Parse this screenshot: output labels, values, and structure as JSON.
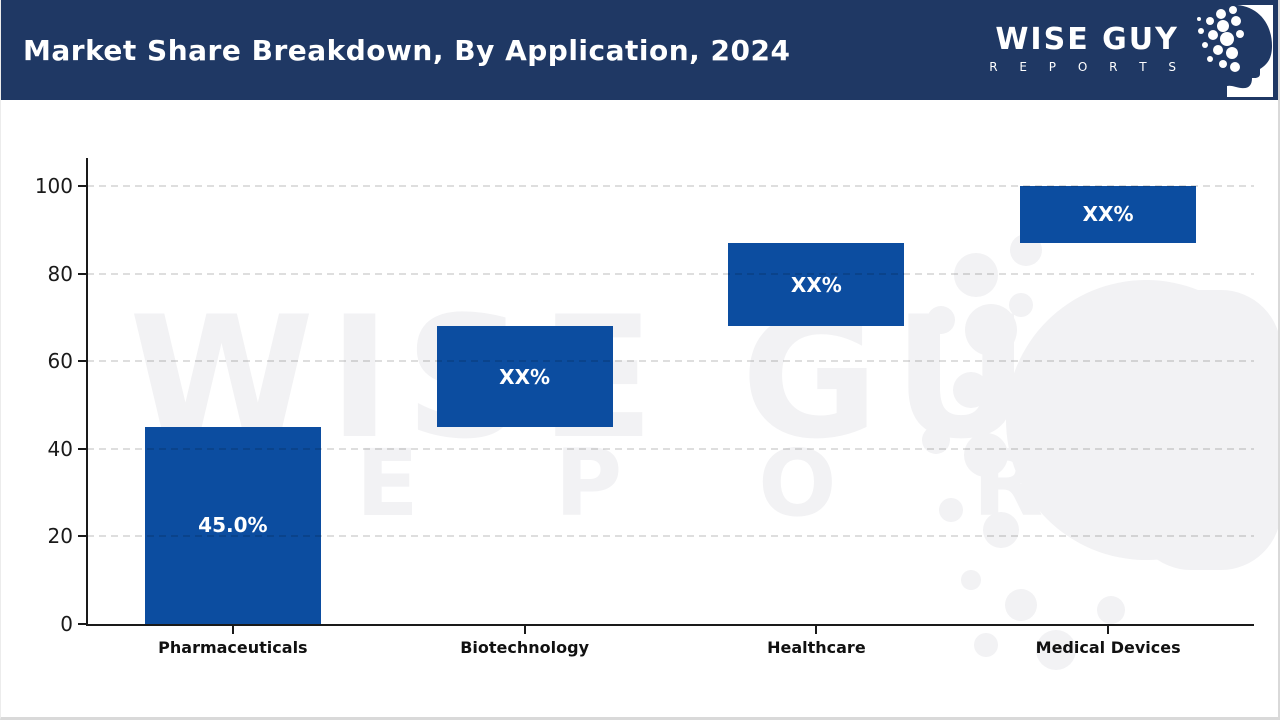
{
  "header": {
    "title": "Market Share Breakdown, By Application, 2024",
    "bg_color": "#1f3864",
    "logo": {
      "line1": "WISE GUY",
      "line2": "R E P O R T S",
      "face_icon": "dotted-face-profile"
    }
  },
  "watermark": {
    "line1": "WISE GU·Y",
    "line2": "R E P O R T S",
    "face_icon": "dotted-face-profile"
  },
  "chart_data": {
    "type": "bar",
    "subtype": "waterfall",
    "title": "Market Share Breakdown, By Application, 2024",
    "xlabel": "",
    "ylabel": "",
    "ylim": [
      0,
      100
    ],
    "yticks": [
      0,
      20,
      40,
      60,
      80,
      100
    ],
    "grid": "horizontal-dashed",
    "legend": "none",
    "bar_color": "#0c4da0",
    "bar_label_color": "#ffffff",
    "categories": [
      "Pharmaceuticals",
      "Biotechnology",
      "Healthcare",
      "Medical Devices"
    ],
    "cumulative_ends": [
      45,
      68,
      87,
      100
    ],
    "series": [
      {
        "name": "Market Share",
        "segments": [
          {
            "category": "Pharmaceuticals",
            "start": 0,
            "end": 45,
            "value": 45.0,
            "label": "45.0%"
          },
          {
            "category": "Biotechnology",
            "start": 45,
            "end": 68,
            "value": 23,
            "label": "XX%"
          },
          {
            "category": "Healthcare",
            "start": 68,
            "end": 87,
            "value": 19,
            "label": "XX%"
          },
          {
            "category": "Medical Devices",
            "start": 87,
            "end": 100,
            "value": 13,
            "label": "XX%"
          }
        ]
      }
    ]
  }
}
